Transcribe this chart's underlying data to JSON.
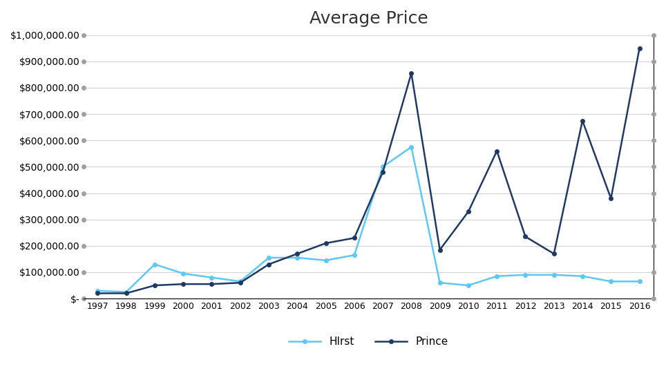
{
  "years": [
    1997,
    1998,
    1999,
    2000,
    2001,
    2002,
    2003,
    2004,
    2005,
    2006,
    2007,
    2008,
    2009,
    2010,
    2011,
    2012,
    2013,
    2014,
    2015,
    2016
  ],
  "hirst": [
    30000,
    25000,
    130000,
    95000,
    80000,
    65000,
    155000,
    155000,
    145000,
    165000,
    500000,
    575000,
    60000,
    50000,
    85000,
    90000,
    90000,
    85000,
    65000,
    65000
  ],
  "prince": [
    20000,
    20000,
    50000,
    55000,
    55000,
    60000,
    130000,
    170000,
    210000,
    230000,
    480000,
    855000,
    185000,
    330000,
    560000,
    235000,
    170000,
    675000,
    380000,
    950000
  ],
  "hirst_color": "#5BC8F5",
  "prince_color": "#1F3864",
  "title": "Average Price",
  "title_fontsize": 18,
  "ylim": [
    0,
    1000000
  ],
  "ytick_step": 100000,
  "legend_hirst": "HIrst",
  "legend_prince": "Prince",
  "bg_color": "#FFFFFF",
  "grid_color": "#D3D3D3",
  "marker": "o",
  "marker_size": 4
}
